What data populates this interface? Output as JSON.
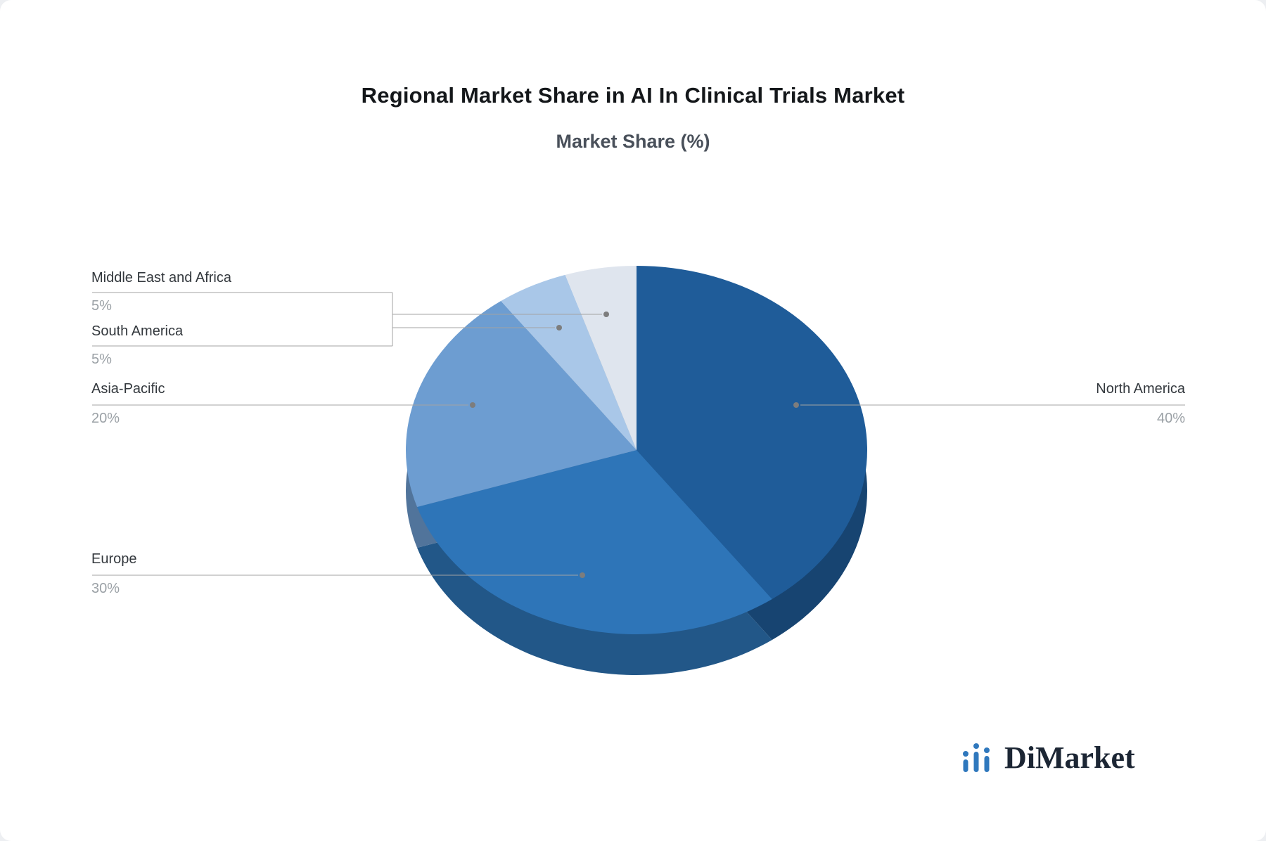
{
  "title": "Regional Market Share in AI In Clinical Trials Market",
  "subtitle": "Market Share (%)",
  "brand": {
    "name": "DiMarket",
    "icon": "bar-chart-logo-icon",
    "icon_color": "#2f78bd",
    "text_color": "#1c2634"
  },
  "chart_data": {
    "type": "pie",
    "style": "3d",
    "title": "Regional Market Share in AI In Clinical Trials Market",
    "subtitle": "Market Share (%)",
    "unit": "%",
    "start_angle_deg": 0,
    "direction": "clockwise",
    "legend_position": "callout-labels",
    "slices": [
      {
        "label": "North America",
        "value": 40,
        "display": "40%",
        "color": "#1f5c99"
      },
      {
        "label": "Europe",
        "value": 30,
        "display": "30%",
        "color": "#2e75b8"
      },
      {
        "label": "Asia-Pacific",
        "value": 20,
        "display": "20%",
        "color": "#6d9dd1"
      },
      {
        "label": "South America",
        "value": 5,
        "display": "5%",
        "color": "#a9c7e8"
      },
      {
        "label": "Middle East and Africa",
        "value": 5,
        "display": "5%",
        "color": "#dfe5ee"
      }
    ]
  }
}
